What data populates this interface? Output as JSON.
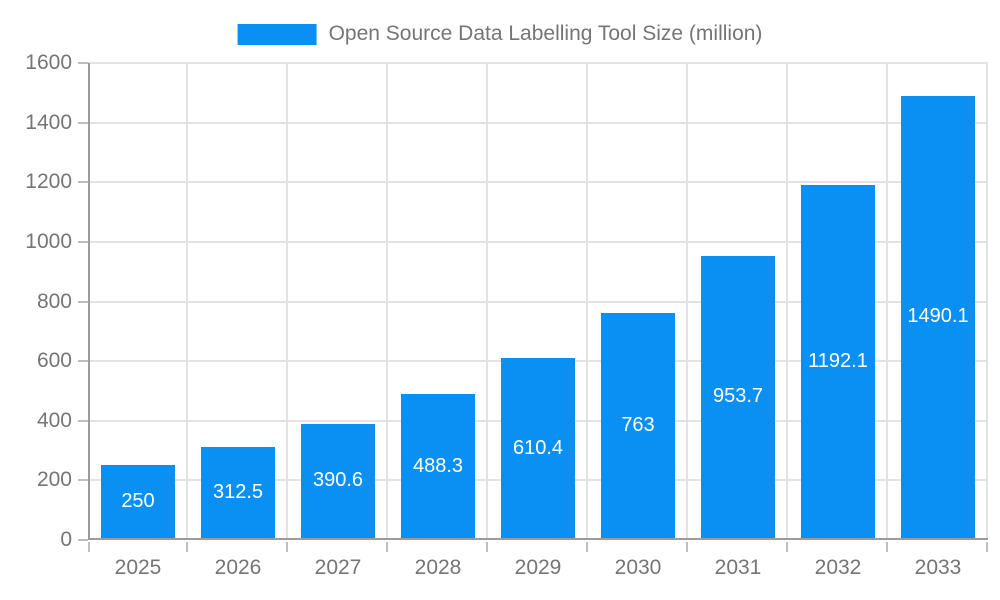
{
  "chart_data": {
    "type": "bar",
    "title": "Open Source Data Labelling Tool Size (million)",
    "categories": [
      "2025",
      "2026",
      "2027",
      "2028",
      "2029",
      "2030",
      "2031",
      "2032",
      "2033"
    ],
    "values": [
      250,
      312.5,
      390.6,
      488.3,
      610.4,
      763,
      953.7,
      1192.1,
      1490.1
    ],
    "value_labels": [
      "250",
      "312.5",
      "390.6",
      "488.3",
      "610.4",
      "763",
      "953.7",
      "1192.1",
      "1490.1"
    ],
    "xlabel": "",
    "ylabel": "",
    "ylim": [
      0,
      1600
    ],
    "y_ticks": [
      0,
      200,
      400,
      600,
      800,
      1000,
      1200,
      1400,
      1600
    ],
    "grid": true,
    "legend_position": "top",
    "value_label_position": "inside-center"
  },
  "legend": {
    "label": "Open Source Data Labelling Tool Size (million)"
  },
  "colors": {
    "bar": "#0990F2",
    "axis_line": "#9b9b9b",
    "gridline": "#e3e3e3",
    "tick": "#bdbdbd",
    "axis_text": "#757575",
    "value_text": "#ffffff",
    "background": "#ffffff"
  }
}
